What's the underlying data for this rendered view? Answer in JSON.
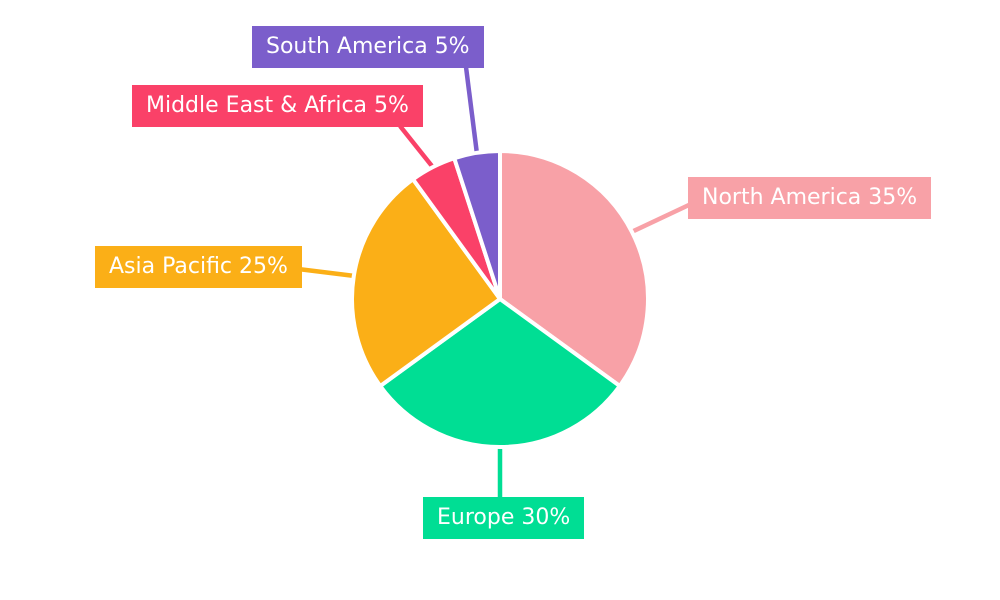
{
  "chart_data": {
    "type": "pie",
    "title": "",
    "direction": "clockwise",
    "start_angle_deg": 0,
    "background": "#FFFFFF",
    "label_text_color": "#FFFFFF",
    "slices": [
      {
        "label": "North America",
        "value": 35,
        "display": "North America 35%",
        "color": "#F8A1A7"
      },
      {
        "label": "Europe",
        "value": 30,
        "display": "Europe 30%",
        "color": "#00DE94"
      },
      {
        "label": "Asia Pacific",
        "value": 25,
        "display": "Asia Pacific 25%",
        "color": "#FBAF17"
      },
      {
        "label": "Middle East & Africa",
        "value": 5,
        "display": "Middle East & Africa 5%",
        "color": "#FA4168"
      },
      {
        "label": "South America",
        "value": 5,
        "display": "South America 5%",
        "color": "#7B5ECB"
      }
    ]
  }
}
